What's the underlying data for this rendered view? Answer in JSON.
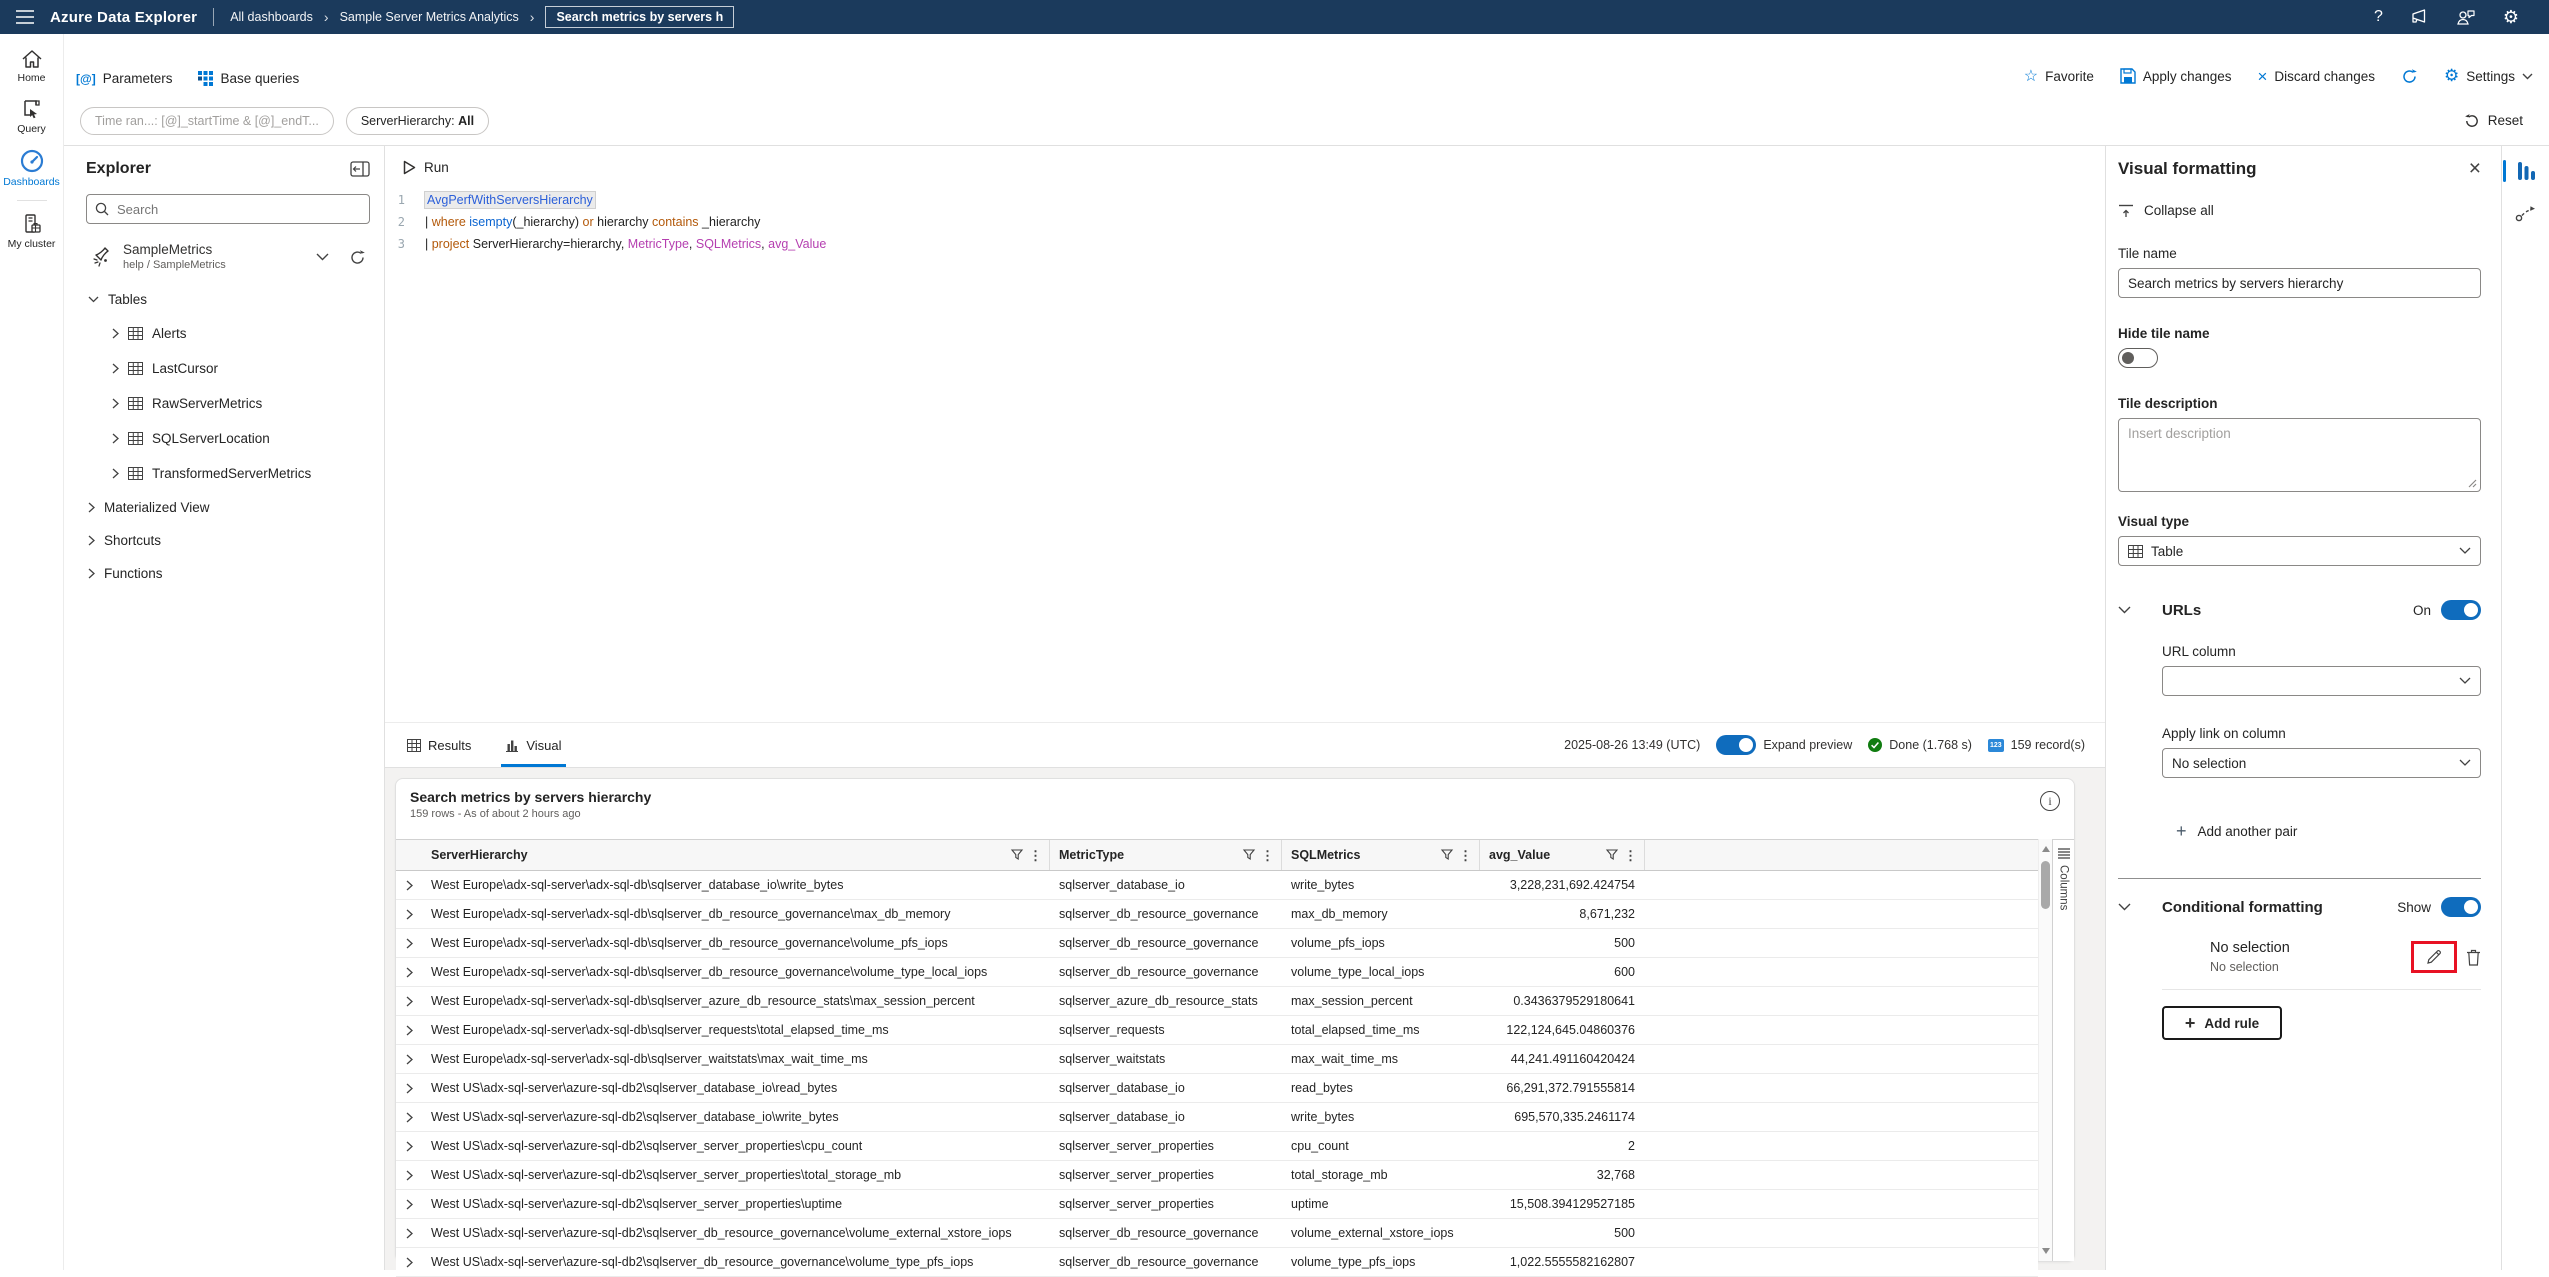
{
  "colors": {
    "accent": "#0078d4",
    "topbar_navy": "#1b3a5c",
    "toggle_on_blue": "#0f6cbd",
    "annotation_red": "#e81123",
    "done_green": "#107c10"
  },
  "topbar": {
    "app_title": "Azure Data Explorer",
    "breadcrumbs": [
      "All dashboards",
      "Sample Server Metrics Analytics",
      "Search metrics by servers h"
    ]
  },
  "toolbar": {
    "parameters_label": "Parameters",
    "base_queries_label": "Base queries",
    "favorite_label": "Favorite",
    "apply_changes_label": "Apply changes",
    "discard_changes_label": "Discard changes",
    "settings_label": "Settings"
  },
  "filterbar": {
    "time_pill": "Time ran...: [@]_startTime  & [@]_endT...",
    "server_pill_label": "ServerHierarchy:",
    "server_pill_value": "All",
    "reset_label": "Reset"
  },
  "nav": {
    "items": [
      {
        "label": "Home"
      },
      {
        "label": "Query"
      },
      {
        "label": "Dashboards",
        "active": true
      },
      {
        "label": "My cluster"
      }
    ]
  },
  "explorer": {
    "title": "Explorer",
    "search_placeholder": "Search",
    "database": {
      "name": "SampleMetrics",
      "path": "help / SampleMetrics"
    },
    "tables_label": "Tables",
    "tables": [
      "Alerts",
      "LastCursor",
      "RawServerMetrics",
      "SQLServerLocation",
      "TransformedServerMetrics"
    ],
    "other_sections": [
      "Materialized View",
      "Shortcuts",
      "Functions"
    ]
  },
  "editor": {
    "run_label": "Run",
    "lines": [
      {
        "num": "1",
        "hl": true,
        "tokens": [
          {
            "t": "AvgPerfWithServersHierarchy",
            "c": "tbl"
          }
        ]
      },
      {
        "num": "2",
        "tokens": [
          {
            "t": "| ",
            "c": "pl"
          },
          {
            "t": "where",
            "c": "kw"
          },
          {
            "t": " ",
            "c": "pl"
          },
          {
            "t": "isempty",
            "c": "fn"
          },
          {
            "t": "(_hierarchy) ",
            "c": "pl"
          },
          {
            "t": "or",
            "c": "kw"
          },
          {
            "t": " hierarchy ",
            "c": "pl"
          },
          {
            "t": "contains",
            "c": "kw"
          },
          {
            "t": " _hierarchy",
            "c": "pl"
          }
        ]
      },
      {
        "num": "3",
        "tokens": [
          {
            "t": "| ",
            "c": "pl"
          },
          {
            "t": "project",
            "c": "kw"
          },
          {
            "t": " ServerHierarchy=hierarchy, ",
            "c": "pl"
          },
          {
            "t": "MetricType",
            "c": "col"
          },
          {
            "t": ", ",
            "c": "pl"
          },
          {
            "t": "SQLMetrics",
            "c": "col"
          },
          {
            "t": ", ",
            "c": "pl"
          },
          {
            "t": "avg_Value",
            "c": "col"
          }
        ]
      }
    ]
  },
  "resultsbar": {
    "tab_results": "Results",
    "tab_visual": "Visual",
    "timestamp": "2025-08-26 13:49 (UTC)",
    "expand_preview_label": "Expand preview",
    "done_label": "Done (1.768 s)",
    "records_label": "159 record(s)",
    "records_icon_text": "123"
  },
  "tile": {
    "title": "Search metrics by servers hierarchy",
    "subtitle": "159 rows - As of about 2 hours ago",
    "columns_tab_label": "Columns",
    "columns": [
      "ServerHierarchy",
      "MetricType",
      "SQLMetrics",
      "avg_Value"
    ],
    "rows": [
      {
        "h": "West Europe\\adx-sql-server\\adx-sql-db\\sqlserver_database_io\\write_bytes",
        "m": "sqlserver_database_io",
        "s": "write_bytes",
        "v": "3,228,231,692.424754"
      },
      {
        "h": "West Europe\\adx-sql-server\\adx-sql-db\\sqlserver_db_resource_governance\\max_db_memory",
        "m": "sqlserver_db_resource_governance",
        "s": "max_db_memory",
        "v": "8,671,232"
      },
      {
        "h": "West Europe\\adx-sql-server\\adx-sql-db\\sqlserver_db_resource_governance\\volume_pfs_iops",
        "m": "sqlserver_db_resource_governance",
        "s": "volume_pfs_iops",
        "v": "500"
      },
      {
        "h": "West Europe\\adx-sql-server\\adx-sql-db\\sqlserver_db_resource_governance\\volume_type_local_iops",
        "m": "sqlserver_db_resource_governance",
        "s": "volume_type_local_iops",
        "v": "600"
      },
      {
        "h": "West Europe\\adx-sql-server\\adx-sql-db\\sqlserver_azure_db_resource_stats\\max_session_percent",
        "m": "sqlserver_azure_db_resource_stats",
        "s": "max_session_percent",
        "v": "0.3436379529180641"
      },
      {
        "h": "West Europe\\adx-sql-server\\adx-sql-db\\sqlserver_requests\\total_elapsed_time_ms",
        "m": "sqlserver_requests",
        "s": "total_elapsed_time_ms",
        "v": "122,124,645.04860376"
      },
      {
        "h": "West Europe\\adx-sql-server\\adx-sql-db\\sqlserver_waitstats\\max_wait_time_ms",
        "m": "sqlserver_waitstats",
        "s": "max_wait_time_ms",
        "v": "44,241.491160420424"
      },
      {
        "h": "West US\\adx-sql-server\\azure-sql-db2\\sqlserver_database_io\\read_bytes",
        "m": "sqlserver_database_io",
        "s": "read_bytes",
        "v": "66,291,372.791555814"
      },
      {
        "h": "West US\\adx-sql-server\\azure-sql-db2\\sqlserver_database_io\\write_bytes",
        "m": "sqlserver_database_io",
        "s": "write_bytes",
        "v": "695,570,335.2461174"
      },
      {
        "h": "West US\\adx-sql-server\\azure-sql-db2\\sqlserver_server_properties\\cpu_count",
        "m": "sqlserver_server_properties",
        "s": "cpu_count",
        "v": "2"
      },
      {
        "h": "West US\\adx-sql-server\\azure-sql-db2\\sqlserver_server_properties\\total_storage_mb",
        "m": "sqlserver_server_properties",
        "s": "total_storage_mb",
        "v": "32,768"
      },
      {
        "h": "West US\\adx-sql-server\\azure-sql-db2\\sqlserver_server_properties\\uptime",
        "m": "sqlserver_server_properties",
        "s": "uptime",
        "v": "15,508.394129527185"
      },
      {
        "h": "West US\\adx-sql-server\\azure-sql-db2\\sqlserver_db_resource_governance\\volume_external_xstore_iops",
        "m": "sqlserver_db_resource_governance",
        "s": "volume_external_xstore_iops",
        "v": "500"
      },
      {
        "h": "West US\\adx-sql-server\\azure-sql-db2\\sqlserver_db_resource_governance\\volume_type_pfs_iops",
        "m": "sqlserver_db_resource_governance",
        "s": "volume_type_pfs_iops",
        "v": "1,022.5555582162807"
      }
    ]
  },
  "format_panel": {
    "title": "Visual formatting",
    "collapse_all_label": "Collapse all",
    "tile_name_label": "Tile name",
    "tile_name_value": "Search metrics by servers hierarchy",
    "hide_tile_name_label": "Hide tile name",
    "tile_description_label": "Tile description",
    "tile_description_placeholder": "Insert description",
    "visual_type_label": "Visual type",
    "visual_type_value": "Table",
    "urls_section_label": "URLs",
    "urls_state_label": "On",
    "url_column_label": "URL column",
    "apply_link_label": "Apply link on column",
    "apply_link_value": "No selection",
    "add_pair_label": "Add another pair",
    "conditional_section_label": "Conditional formatting",
    "conditional_state_label": "Show",
    "rule_title": "No selection",
    "rule_subtitle": "No selection",
    "add_rule_label": "Add rule"
  }
}
